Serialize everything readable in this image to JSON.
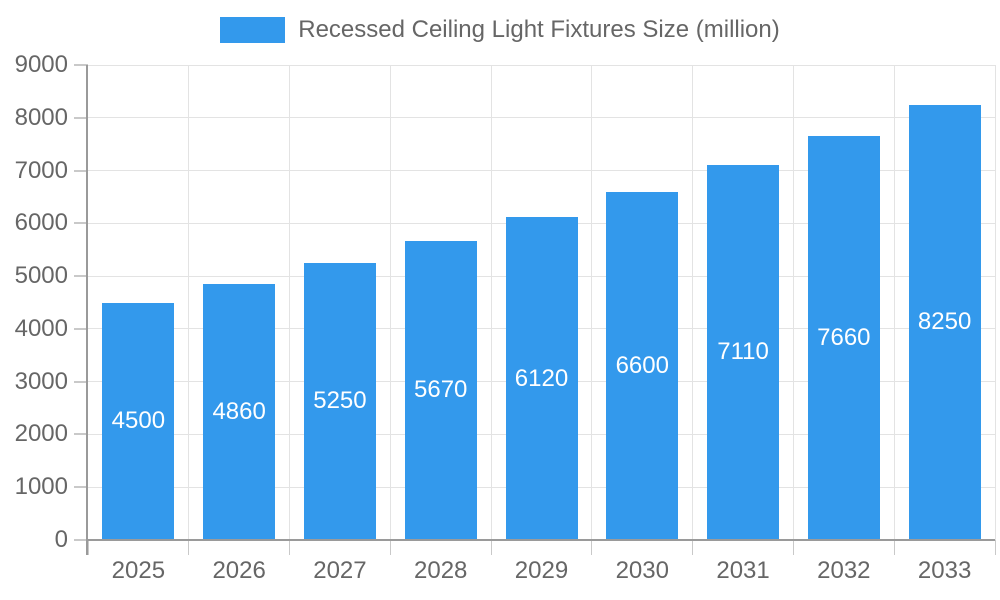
{
  "chart_data": {
    "type": "bar",
    "title": "Recessed Ceiling Light Fixtures Size (million)",
    "categories": [
      "2025",
      "2026",
      "2027",
      "2028",
      "2029",
      "2030",
      "2031",
      "2032",
      "2033"
    ],
    "values": [
      4500,
      4860,
      5250,
      5670,
      6120,
      6600,
      7110,
      7660,
      8250
    ],
    "yticks": [
      0,
      1000,
      2000,
      3000,
      4000,
      5000,
      6000,
      7000,
      8000,
      9000
    ],
    "ylim": [
      0,
      9000
    ],
    "xlabel": "",
    "ylabel": "",
    "legend_position": "top-center",
    "grid": true,
    "bar_labels_inside": true,
    "colors": {
      "bar": "#3399EC",
      "bar_label": "#FFFFFF",
      "axis_label": "#666666",
      "title": "#666666",
      "grid_line": "#E3E3E3",
      "axis_line": "#9A9A9A",
      "tick": "#C9C9C9",
      "background": "#FFFFFF"
    }
  }
}
